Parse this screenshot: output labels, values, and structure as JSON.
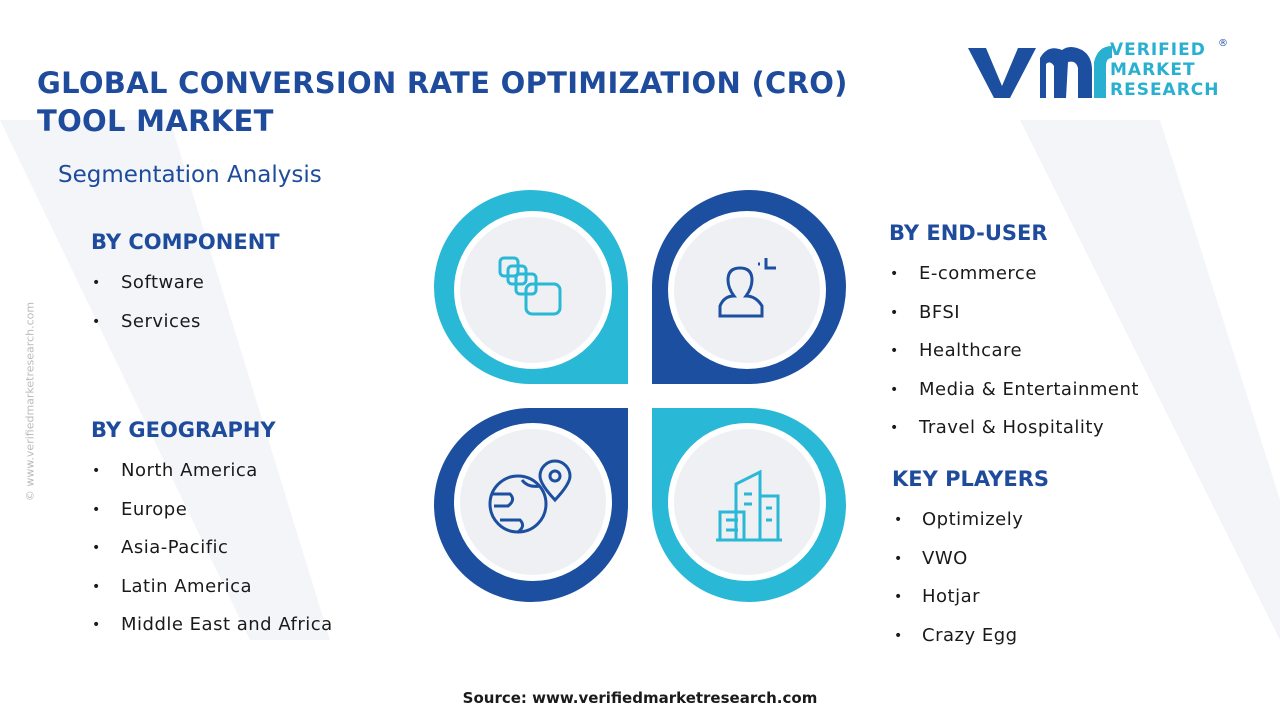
{
  "header": {
    "title_lines": [
      "GLOBAL CONVERSION RATE OPTIMIZATION (CRO)",
      "TOOL MARKET"
    ],
    "subtitle": "Segmentation Analysis"
  },
  "logo": {
    "lines": [
      "VERIFIED",
      "MARKET",
      "RESEARCH"
    ],
    "mark": "®"
  },
  "watermark": "© www.verifiedmarketresearch.com",
  "segments": [
    {
      "heading": "BY COMPONENT",
      "items": [
        "Software",
        "Services"
      ]
    },
    {
      "heading": "BY GEOGRAPHY",
      "items": [
        "North America",
        "Europe",
        "Asia-Pacific",
        "Latin America",
        "Middle East and Africa"
      ]
    },
    {
      "heading": "BY END-USER",
      "items": [
        "E-commerce",
        "BFSI",
        "Healthcare",
        "Media & Entertainment",
        "Travel & Hospitality"
      ]
    },
    {
      "heading": "KEY PLAYERS",
      "items": [
        "Optimizely",
        "VWO",
        "Hotjar",
        "Crazy Egg"
      ]
    }
  ],
  "source": "Source: www.verifiedmarketresearch.com"
}
